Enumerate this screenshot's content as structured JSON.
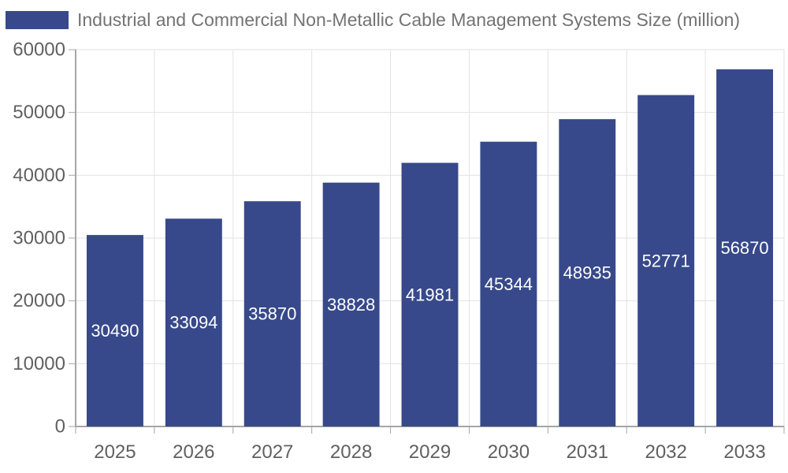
{
  "chart_data": {
    "type": "bar",
    "title": "Industrial and Commercial Non-Metallic Cable Management Systems Size (million)",
    "xlabel": "",
    "ylabel": "",
    "categories": [
      "2025",
      "2026",
      "2027",
      "2028",
      "2029",
      "2030",
      "2031",
      "2032",
      "2033"
    ],
    "values": [
      30490,
      33094,
      35870,
      38828,
      41981,
      45344,
      48935,
      52771,
      56870
    ],
    "bar_labels": [
      "30490",
      "33094",
      "35870",
      "38828",
      "41981",
      "45344",
      "48935",
      "52771",
      "56870"
    ],
    "ylim": [
      0,
      60000
    ],
    "y_ticks": [
      0,
      10000,
      20000,
      30000,
      40000,
      50000,
      60000
    ],
    "y_tick_labels": [
      "0",
      "10000",
      "20000",
      "30000",
      "40000",
      "50000",
      "60000"
    ],
    "grid": true,
    "legend_position": "top-left",
    "legend_entries": [
      "Industrial and Commercial Non-Metallic Cable Management Systems Size (million)"
    ]
  },
  "colors": {
    "bar": "#37498A",
    "bar_label": "#ffffff",
    "grid": "#e2e2e2",
    "axis": "#a6a6a6",
    "tick_label": "#606060",
    "title": "#737373",
    "background": "#ffffff"
  }
}
